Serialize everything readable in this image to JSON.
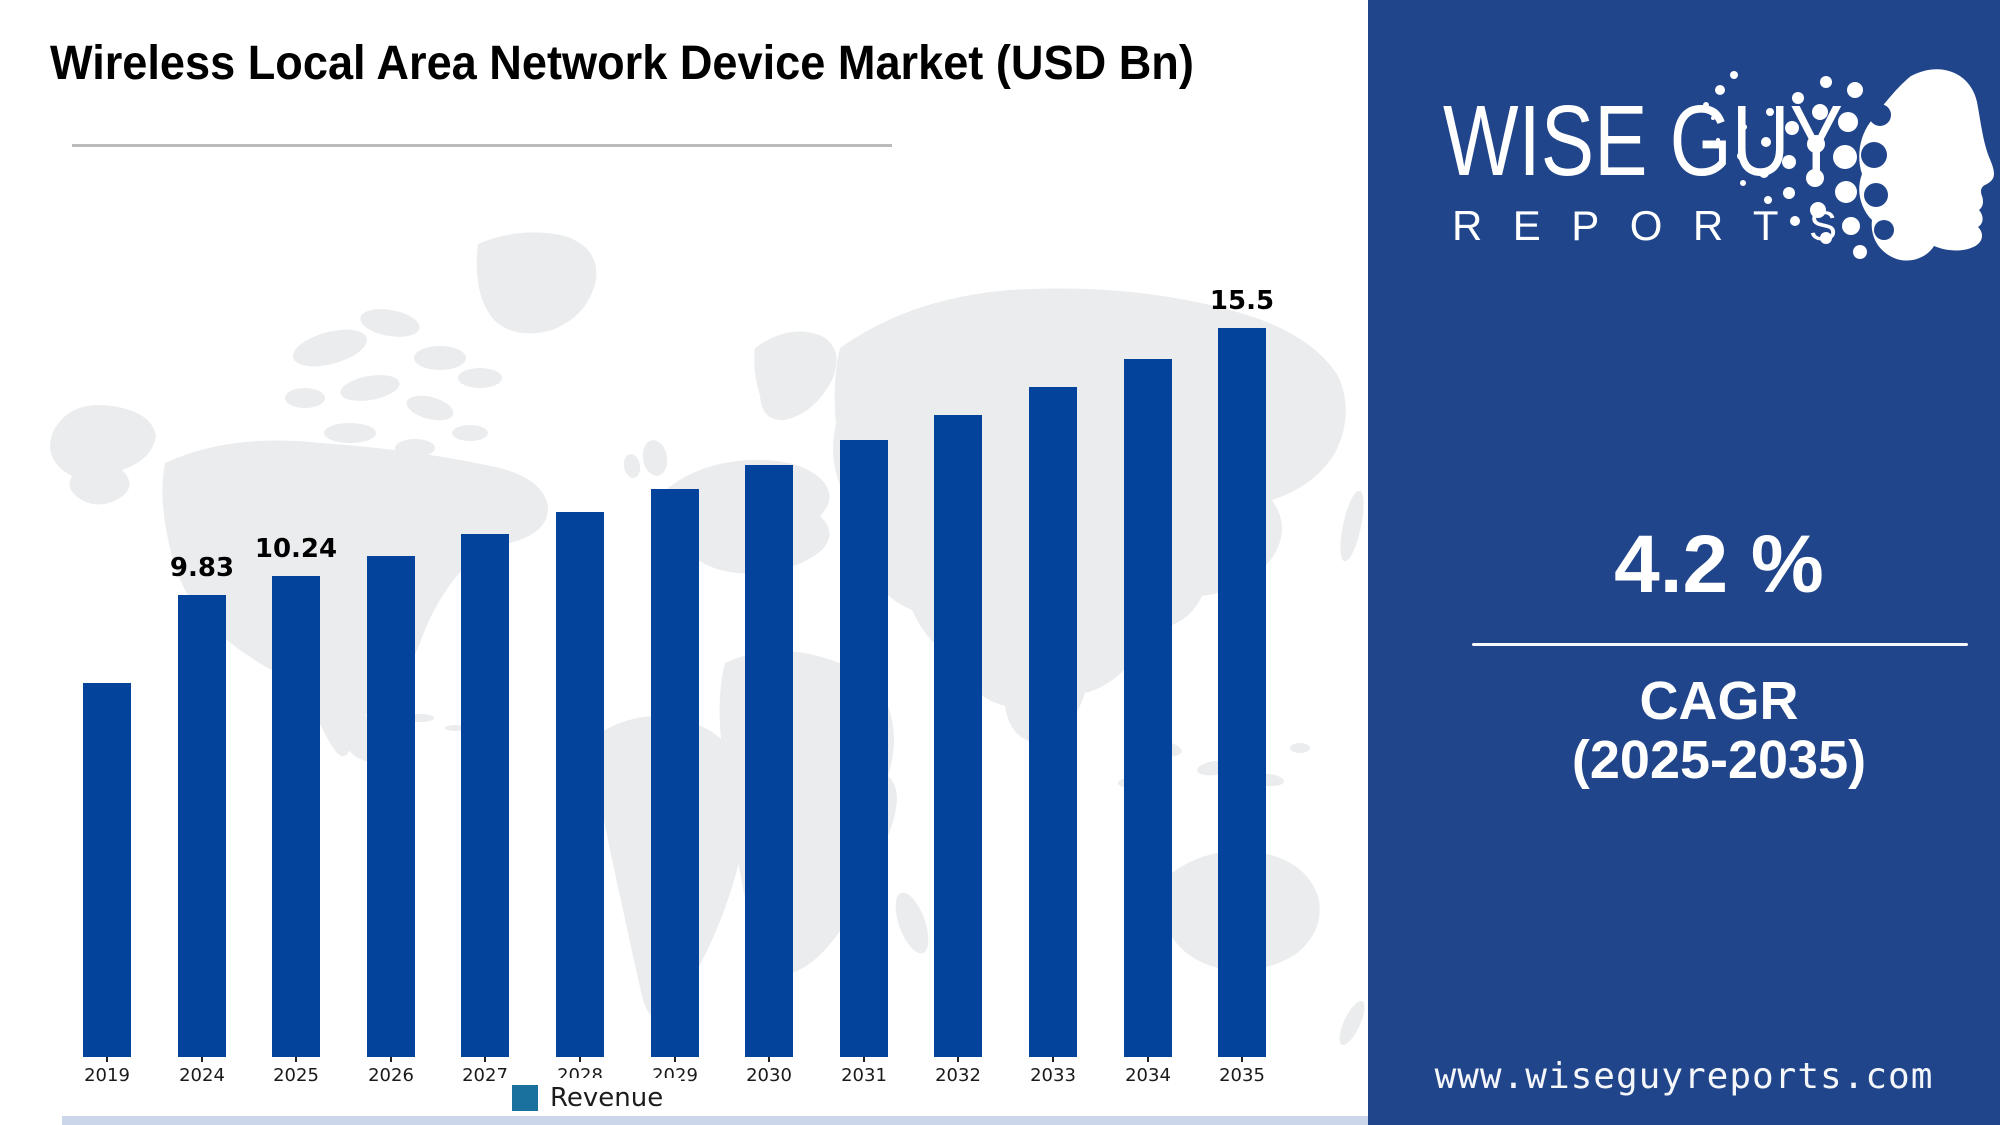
{
  "chart_data": {
    "type": "bar",
    "title": "Wireless Local Area Network Device Market (USD Bn)",
    "categories": [
      "2019",
      "2024",
      "2025",
      "2026",
      "2027",
      "2028",
      "2029",
      "2030",
      "2031",
      "2032",
      "2033",
      "2034",
      "2035"
    ],
    "values": [
      7.95,
      9.83,
      10.24,
      10.67,
      11.12,
      11.59,
      12.08,
      12.59,
      13.12,
      13.67,
      14.25,
      14.85,
      15.5
    ],
    "data_labels": {
      "2024": "9.83",
      "2025": "10.24",
      "2035": "15.5"
    },
    "legend": {
      "label": "Revenue",
      "position": "bottom-center"
    },
    "xlabel": "",
    "ylabel": "",
    "ylim": [
      0,
      16.6
    ],
    "grid": false,
    "bar_orientation": "vertical"
  },
  "brand": {
    "logo_line1": "WISE GUY",
    "logo_line2": "REPORTS",
    "cagr_value": "4.2 %",
    "cagr_label": "CAGR",
    "cagr_period": "(2025-2035)",
    "website": "www.wiseguyreports.com"
  },
  "colors": {
    "bar-blue": "#04439c",
    "panel-blue": "#21458b",
    "legend-teal": "#1b719e",
    "map-gray": "#eaecee",
    "strip-blue": "#ccd6ea",
    "divider-gray": "#bbbbbb"
  }
}
